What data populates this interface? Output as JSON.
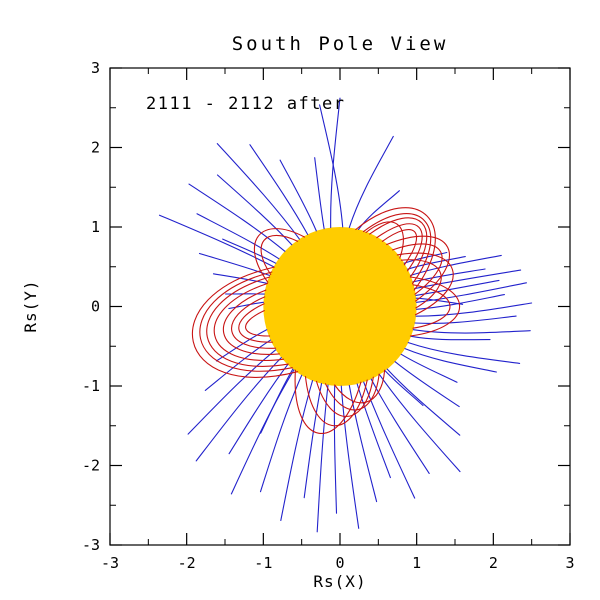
{
  "chart_data": {
    "type": "line",
    "title": "South Pole View",
    "annotation": "2111 - 2112 after",
    "xlabel": "Rs(X)",
    "ylabel": "Rs(Y)",
    "xlim": [
      -3,
      3
    ],
    "ylim": [
      -3,
      3
    ],
    "xticks": [
      -3,
      -2,
      -1,
      0,
      1,
      2,
      3
    ],
    "yticks": [
      -3,
      -2,
      -1,
      0,
      1,
      2,
      3
    ],
    "grid": false,
    "legend": "none",
    "background_color": "#FFFFFF",
    "axis_color": "#000000",
    "sun": {
      "center_x": 0,
      "center_y": 0,
      "radius": 1.0,
      "color": "#FFCC00"
    },
    "open_field_color": "#2222CC",
    "closed_field_color": "#C81414",
    "open_field_lines": {
      "format": [
        "start_angle_deg",
        "end_angle_deg",
        "end_radius_rs"
      ],
      "lines": [
        [
          97,
          90,
          2.62
        ],
        [
          88,
          96,
          2.55
        ],
        [
          83,
          72,
          2.25
        ],
        [
          76,
          62,
          1.65
        ],
        [
          102,
          100,
          1.9
        ],
        [
          108,
          113,
          2.0
        ],
        [
          115,
          120,
          2.35
        ],
        [
          122,
          128,
          2.6
        ],
        [
          129,
          134,
          2.3
        ],
        [
          136,
          142,
          2.5
        ],
        [
          143,
          148,
          2.2
        ],
        [
          150,
          154,
          2.62
        ],
        [
          157,
          160,
          1.95
        ],
        [
          163,
          166,
          1.7
        ],
        [
          147,
          151,
          1.75
        ],
        [
          171,
          174,
          1.5
        ],
        [
          177,
          181,
          1.45
        ],
        [
          197,
          203,
          1.75
        ],
        [
          205,
          211,
          2.05
        ],
        [
          213,
          219,
          2.55
        ],
        [
          220,
          226,
          2.7
        ],
        [
          227,
          232,
          2.35
        ],
        [
          233,
          239,
          2.75
        ],
        [
          240,
          246,
          2.55
        ],
        [
          232,
          237,
          1.9
        ],
        [
          249,
          254,
          2.8
        ],
        [
          256,
          259,
          2.45
        ],
        [
          261,
          264,
          2.85
        ],
        [
          266,
          269,
          2.6
        ],
        [
          271,
          275,
          2.8
        ],
        [
          277,
          281,
          2.5
        ],
        [
          283,
          287,
          2.25
        ],
        [
          288,
          292,
          2.6
        ],
        [
          294,
          299,
          2.4
        ],
        [
          301,
          307,
          2.6
        ],
        [
          308,
          314,
          2.25
        ],
        [
          316,
          321,
          2.0
        ],
        [
          323,
          328,
          1.8
        ],
        [
          306,
          311,
          1.65
        ],
        [
          -32,
          -22,
          2.2
        ],
        [
          -27,
          -17,
          2.45
        ],
        [
          -22,
          -12,
          2.0
        ],
        [
          -17,
          -7,
          2.5
        ],
        [
          -12,
          -3,
          2.3
        ],
        [
          -7,
          1,
          2.5
        ],
        [
          -2,
          4,
          2.15
        ],
        [
          3,
          7,
          2.45
        ],
        [
          8,
          9,
          2.1
        ],
        [
          13,
          11,
          2.4
        ],
        [
          18,
          14,
          1.95
        ],
        [
          23,
          17,
          2.2
        ],
        [
          28,
          21,
          1.75
        ],
        [
          33,
          26,
          1.55
        ],
        [
          6,
          1,
          1.6
        ]
      ]
    },
    "closed_field_loops": {
      "format": [
        "footpoint1_angle_deg",
        "footpoint2_angle_deg",
        "apex_radius_rs"
      ],
      "loops": [
        [
          150,
          236,
          2.1
        ],
        [
          154,
          231,
          1.95
        ],
        [
          158,
          227,
          1.82
        ],
        [
          163,
          222,
          1.68
        ],
        [
          168,
          217,
          1.52
        ],
        [
          173,
          212,
          1.38
        ],
        [
          178,
          207,
          1.26
        ],
        [
          183,
          202,
          1.15
        ],
        [
          118,
          162,
          1.32
        ],
        [
          124,
          156,
          1.2
        ],
        [
          12,
          78,
          1.62
        ],
        [
          17,
          72,
          1.52
        ],
        [
          22,
          67,
          1.45
        ],
        [
          27,
          61,
          1.36
        ],
        [
          32,
          56,
          1.26
        ],
        [
          4,
          52,
          1.56
        ],
        [
          9,
          46,
          1.42
        ],
        [
          -6,
          41,
          1.5
        ],
        [
          -1,
          36,
          1.3
        ],
        [
          -22,
          22,
          1.52
        ],
        [
          -16,
          16,
          1.36
        ],
        [
          38,
          70,
          1.18
        ],
        [
          234,
          286,
          1.6
        ],
        [
          243,
          291,
          1.46
        ],
        [
          252,
          296,
          1.32
        ],
        [
          259,
          301,
          1.24
        ],
        [
          266,
          306,
          1.16
        ]
      ]
    }
  }
}
